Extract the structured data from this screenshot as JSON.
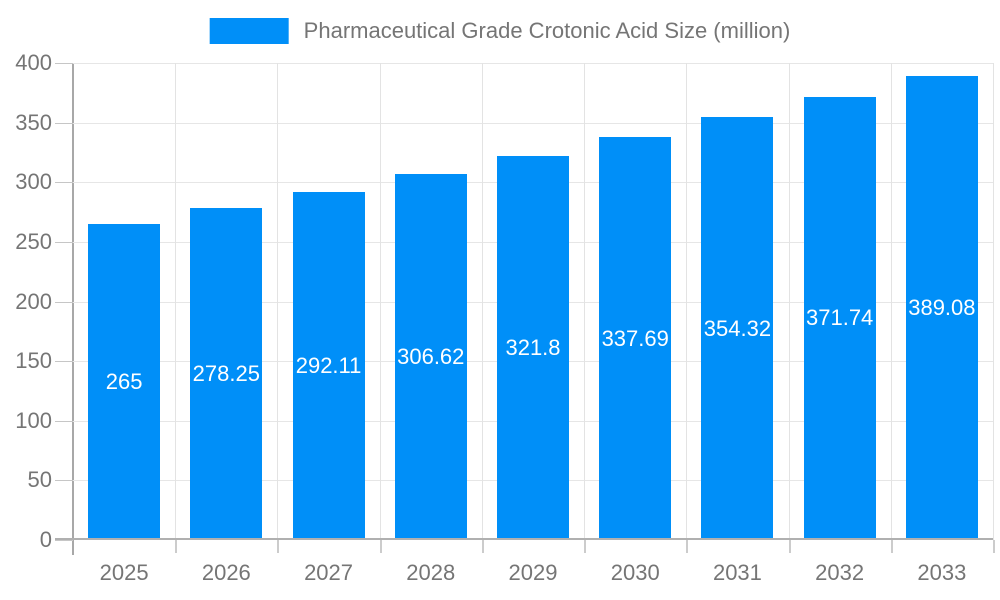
{
  "chart_data": {
    "type": "bar",
    "title": "Pharmaceutical Grade Crotonic Acid Size (million)",
    "categories": [
      "2025",
      "2026",
      "2027",
      "2028",
      "2029",
      "2030",
      "2031",
      "2032",
      "2033"
    ],
    "values": [
      265,
      278.25,
      292.11,
      306.62,
      321.8,
      337.69,
      354.32,
      371.74,
      389.08
    ],
    "series": [
      {
        "name": "Pharmaceutical Grade Crotonic Acid Size (million)",
        "values": [
          265,
          278.25,
          292.11,
          306.62,
          321.8,
          337.69,
          354.32,
          371.74,
          389.08
        ]
      }
    ],
    "xlabel": "",
    "ylabel": "",
    "ylim": [
      0,
      400
    ],
    "yticks": [
      0,
      50,
      100,
      150,
      200,
      250,
      300,
      350,
      400
    ],
    "grid": true,
    "legend_position": "top",
    "value_labels_inside_bars": true,
    "colors": {
      "bar": "#008ff8",
      "bar_label_text": "#ffffff",
      "axis_text": "#757575",
      "gridline": "#e6e6e6",
      "axis_line": "#b0b0b0"
    }
  }
}
